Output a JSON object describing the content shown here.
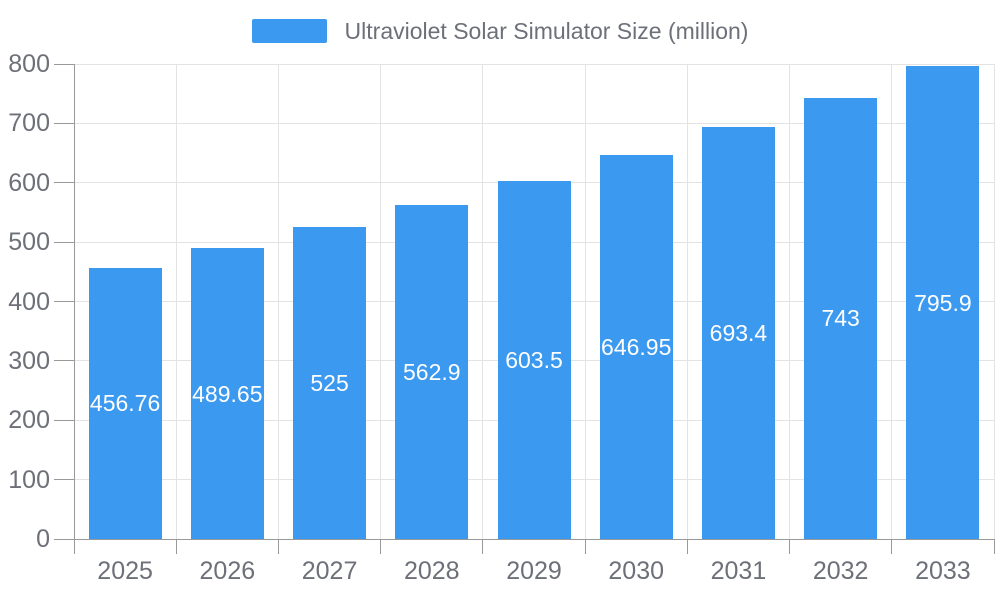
{
  "chart_data": {
    "type": "bar",
    "title": "Ultraviolet Solar Simulator Size (million)",
    "legend": "Ultraviolet Solar Simulator Size (million)",
    "legend_position": "top",
    "categories": [
      "2025",
      "2026",
      "2027",
      "2028",
      "2029",
      "2030",
      "2031",
      "2032",
      "2033"
    ],
    "values": [
      456.76,
      489.65,
      525,
      562.9,
      603.5,
      646.95,
      693.4,
      743,
      795.9
    ],
    "value_labels": [
      "456.76",
      "489.65",
      "525",
      "562.9",
      "603.5",
      "646.95",
      "693.4",
      "743",
      "795.9"
    ],
    "ylim": [
      0,
      800
    ],
    "ytick_step": 100,
    "yticks": [
      0,
      100,
      200,
      300,
      400,
      500,
      600,
      700,
      800
    ],
    "grid": true,
    "colors": {
      "bar": "#3B99F0",
      "gridline": "#E3E3E3",
      "axis_line": "#999999",
      "axis_label": "#6E7079",
      "legend_text": "#6E7079",
      "value_label": "#FFFFFF",
      "background": "#FFFFFF"
    }
  }
}
